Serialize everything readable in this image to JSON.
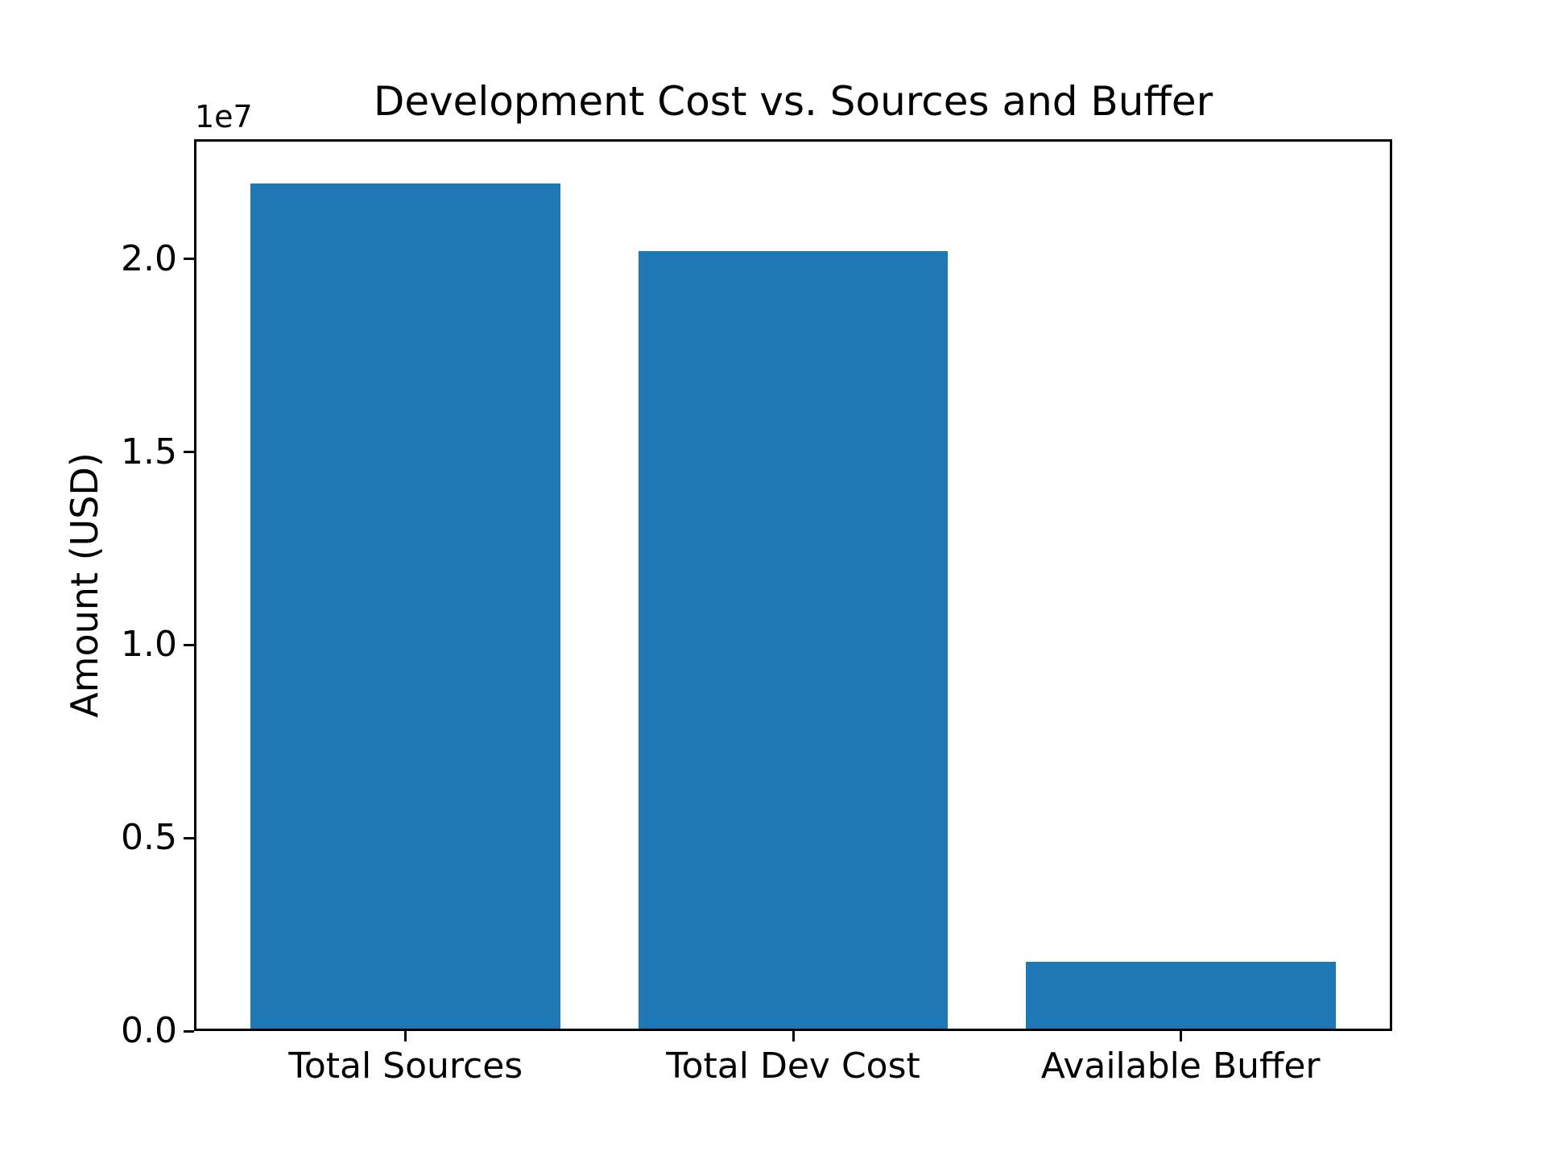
{
  "chart_data": {
    "type": "bar",
    "title": "Development Cost vs. Sources and Buffer",
    "xlabel": "",
    "ylabel": "Amount (USD)",
    "y_offset_text": "1e7",
    "categories": [
      "Total Sources",
      "Total Dev Cost",
      "Available Buffer"
    ],
    "values": [
      22000000,
      20250000,
      1750000
    ],
    "bar_color": "#1f77b4",
    "axis_color": "#000000",
    "background_color": "#ffffff",
    "ylim": [
      0,
      23100000
    ],
    "xlim": [
      -0.54,
      2.54
    ],
    "bar_width_units": 0.8,
    "yticks": {
      "values": [
        0,
        5000000,
        10000000,
        15000000,
        20000000
      ],
      "labels": [
        "0.0",
        "0.5",
        "1.0",
        "1.5",
        "2.0"
      ]
    },
    "grid": false,
    "legend_position": "none"
  }
}
